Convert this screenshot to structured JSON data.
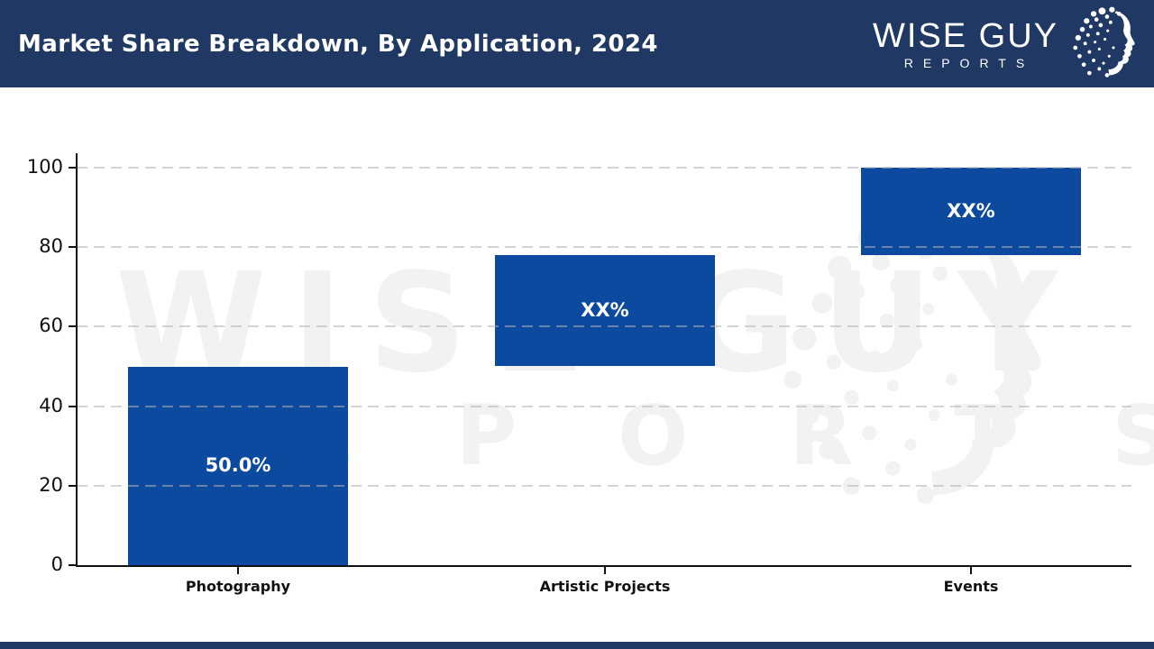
{
  "header": {
    "title": "Market Share Breakdown, By Application, 2024",
    "logo": {
      "primary": "WISE GUY",
      "secondary": "REPORTS"
    }
  },
  "watermark": {
    "primary": "WISE GUY",
    "secondary": "R E P O R T S"
  },
  "chart_data": {
    "type": "bar",
    "variant": "waterfall",
    "title": "Market Share Breakdown, By Application, 2024",
    "categories": [
      "Photography",
      "Artistic Projects",
      "Events"
    ],
    "bars": [
      {
        "category": "Photography",
        "start": 0,
        "end": 50,
        "label": "50.0%"
      },
      {
        "category": "Artistic Projects",
        "start": 50,
        "end": 78,
        "label": "XX%"
      },
      {
        "category": "Events",
        "start": 78,
        "end": 100,
        "label": "XX%"
      }
    ],
    "yticks": [
      0,
      20,
      40,
      60,
      80,
      100
    ],
    "ylim": [
      0,
      104
    ],
    "grid": "dashed-horizontal",
    "legend": "none",
    "colors": {
      "bar": "#0b4a9e",
      "header_bg": "#1f3864",
      "grid": "#d6d6d6",
      "axis": "#111111",
      "bar_label_text": "#ffffff",
      "watermark": "#f2f2f2"
    }
  }
}
